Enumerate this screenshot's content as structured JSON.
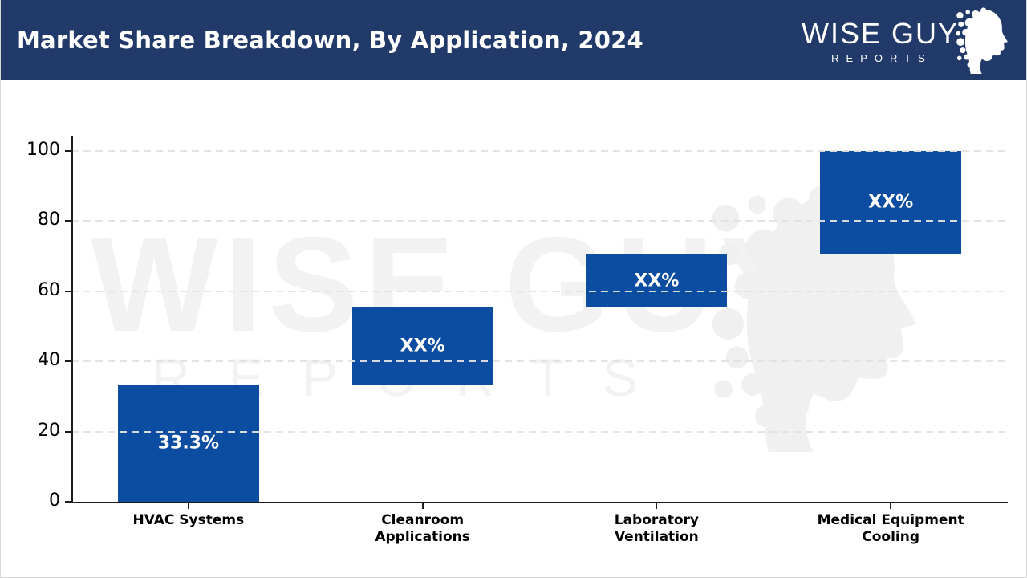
{
  "header": {
    "title": "Market Share Breakdown, By Application, 2024",
    "bg_color": "#213a69",
    "logo": {
      "line1": "WISE GUY",
      "line2": "REPORTS"
    }
  },
  "watermark": {
    "line1": "WISE GUY",
    "line2": "REPORTS"
  },
  "chart_data": {
    "type": "bar",
    "subtype": "waterfall",
    "title": "Market Share Breakdown, By Application, 2024",
    "categories": [
      "HVAC Systems",
      "Cleanroom Applications",
      "Laboratory Ventilation",
      "Medical Equipment Cooling"
    ],
    "label_lines": [
      [
        "HVAC Systems"
      ],
      [
        "Cleanroom",
        "Applications"
      ],
      [
        "Laboratory",
        "Ventilation"
      ],
      [
        "Medical Equipment",
        "Cooling"
      ]
    ],
    "series": [
      {
        "name": "Market Share",
        "segments": [
          {
            "category": "HVAC Systems",
            "start": 0,
            "end": 33.3,
            "label": "33.3%"
          },
          {
            "category": "Cleanroom Applications",
            "start": 33.3,
            "end": 55.5,
            "label": "XX%"
          },
          {
            "category": "Laboratory Ventilation",
            "start": 55.5,
            "end": 70.4,
            "label": "XX%"
          },
          {
            "category": "Medical Equipment Cooling",
            "start": 70.4,
            "end": 100,
            "label": "XX%"
          }
        ]
      }
    ],
    "xlabel": "",
    "ylabel": "",
    "ylim": [
      0,
      100
    ],
    "yticks": [
      0,
      20,
      40,
      60,
      80,
      100
    ],
    "grid": "dashed horizontal, drawn over bars",
    "legend": "none",
    "bar_color": "#0c4da1",
    "bar_label_color": "#ffffff"
  }
}
